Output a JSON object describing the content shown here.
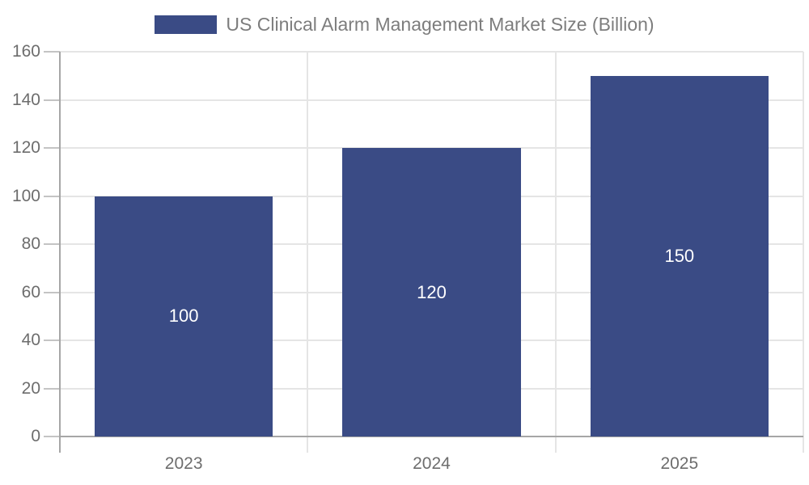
{
  "legend": {
    "title": "US Clinical Alarm Management Market Size (Billion)"
  },
  "chart_data": {
    "type": "bar",
    "title": "US Clinical Alarm Management Market Size (Billion)",
    "categories": [
      "2023",
      "2024",
      "2025"
    ],
    "values": [
      100,
      120,
      150
    ],
    "data_labels": [
      "100",
      "120",
      "150"
    ],
    "xlabel": "",
    "ylabel": "",
    "ylim": [
      0,
      160
    ],
    "yticks": [
      0,
      20,
      40,
      60,
      80,
      100,
      120,
      140,
      160
    ],
    "grid": true,
    "legend_position": "top",
    "bar_width_ratio": 0.72,
    "colors": {
      "bar": "#3A4B85",
      "grid": "#E5E5E5",
      "axis": "#A6A6A6",
      "tick": "#C4C4C4",
      "tick_text": "#6D6D6D",
      "title_text": "#7D7D7D",
      "value_text": "#FFFFFF"
    }
  }
}
